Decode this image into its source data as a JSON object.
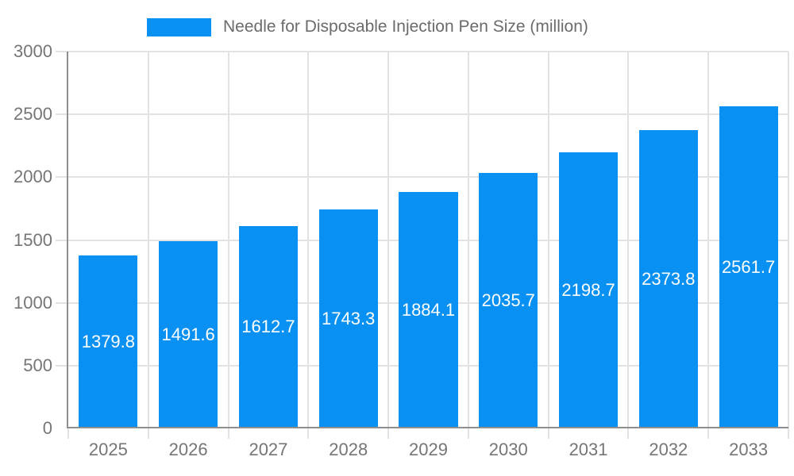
{
  "colors": {
    "bar": "#0890f2",
    "grid": "#e2e2e2",
    "axis": "#8f8f8f",
    "tick_label": "#757575",
    "title": "#6b6b6b",
    "value_label": "#ffffff",
    "background": "#ffffff"
  },
  "chart_data": {
    "type": "bar",
    "title": "Needle for Disposable Injection Pen Size (million)",
    "categories": [
      "2025",
      "2026",
      "2027",
      "2028",
      "2029",
      "2030",
      "2031",
      "2032",
      "2033"
    ],
    "values": [
      1379.8,
      1491.6,
      1612.7,
      1743.3,
      1884.1,
      2035.7,
      2198.7,
      2373.8,
      2561.7
    ],
    "value_labels": [
      "1379.8",
      "1491.6",
      "1612.7",
      "1743.3",
      "1884.1",
      "2035.7",
      "2198.7",
      "2373.8",
      "2561.7"
    ],
    "xlabel": "",
    "ylabel": "",
    "ylim": [
      0,
      3000
    ],
    "yticks": [
      0,
      500,
      1000,
      1500,
      2000,
      2500,
      3000
    ],
    "grid": true,
    "legend_position": "top-center",
    "value_label_position": "inside-center"
  }
}
